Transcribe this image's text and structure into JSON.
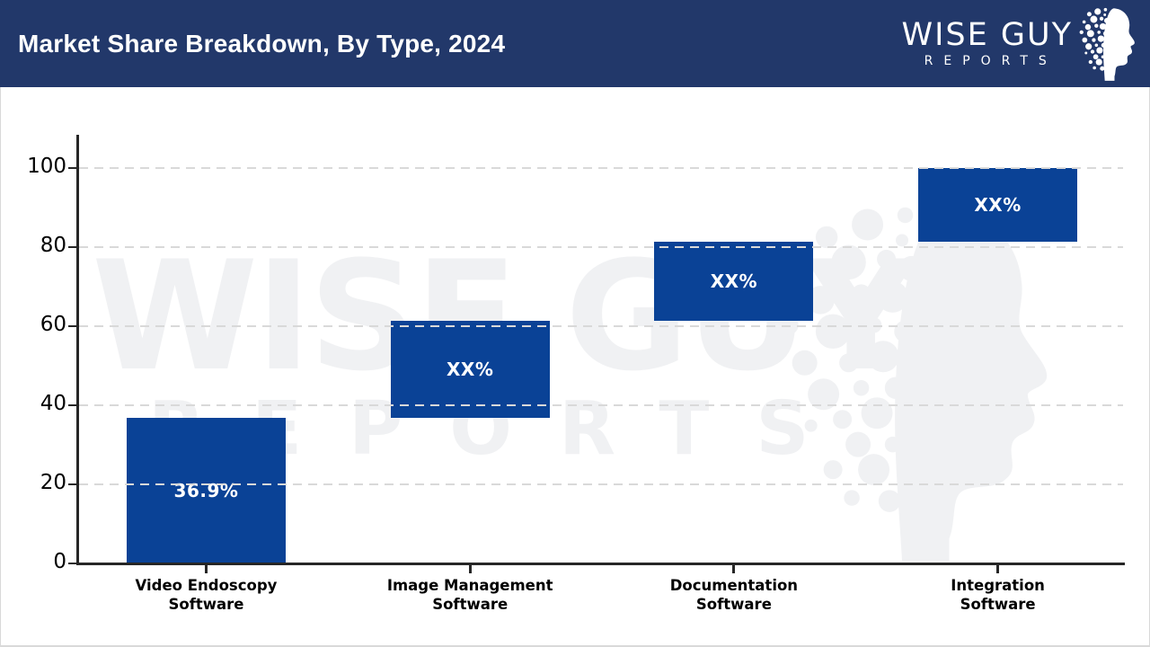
{
  "header": {
    "title": "Market Share Breakdown, By Type, 2024",
    "logo": {
      "line1": "WISE GUY",
      "line2": "REPORTS"
    }
  },
  "watermark": {
    "line1": "WISE GUY",
    "line2": "REPORTS"
  },
  "chart_data": {
    "type": "bar",
    "subtype": "waterfall",
    "title": "Market Share Breakdown, By Type, 2024",
    "xlabel": "",
    "ylabel": "",
    "categories": [
      "Video Endoscopy\nSoftware",
      "Image Management\nSoftware",
      "Documentation\nSoftware",
      "Integration\nSoftware"
    ],
    "segments": [
      {
        "label": "36.9%",
        "start": 0,
        "end": 36.9
      },
      {
        "label": "XX%",
        "start": 36.9,
        "end": 61.4
      },
      {
        "label": "XX%",
        "start": 61.4,
        "end": 81.4
      },
      {
        "label": "XX%",
        "start": 81.4,
        "end": 100
      }
    ],
    "yticks": [
      0,
      20,
      40,
      60,
      80,
      100
    ],
    "ylim": [
      0,
      107
    ],
    "grid": "horizontal dashed gridlines drawn over bars",
    "legend": "none",
    "bar_color": "#0a4296",
    "label_color": "#ffffff"
  },
  "colors": {
    "header_bg": "#22386a",
    "bar_blue": "#0a4296",
    "grid": "#d9d9d9",
    "axis": "#262626",
    "watermark": "#f0f1f3",
    "text": "#000000",
    "white": "#ffffff"
  }
}
